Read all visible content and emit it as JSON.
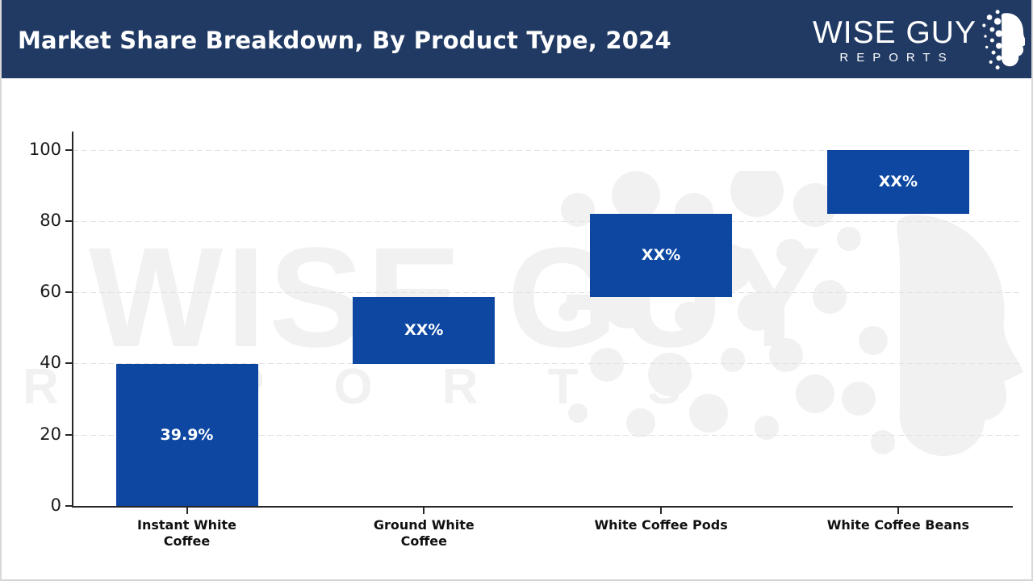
{
  "header": {
    "title": "Market Share Breakdown, By Product Type, 2024",
    "bg_color": "#213a64",
    "logo": {
      "line1": "WISE GUY",
      "line2": "REPORTS"
    }
  },
  "watermark": {
    "line1": "WISE GUY",
    "line2": "REPORTS",
    "color": "#f1f1f1"
  },
  "chart_data": {
    "type": "bar",
    "subtype": "waterfall-floating-bars",
    "title": "Market Share Breakdown, By Product Type, 2024",
    "categories": [
      "Instant White Coffee",
      "Ground White Coffee",
      "White Coffee Pods",
      "White Coffee Beans"
    ],
    "category_label_lines": [
      [
        "Instant White",
        "Coffee"
      ],
      [
        "Ground White",
        "Coffee"
      ],
      [
        "White Coffee Pods"
      ],
      [
        "White Coffee Beans"
      ]
    ],
    "segments": [
      {
        "category": "Instant White Coffee",
        "start": 0,
        "end": 39.9,
        "label": "39.9%"
      },
      {
        "category": "Ground White Coffee",
        "start": 39.9,
        "end": 58.7,
        "label": "XX%"
      },
      {
        "category": "White Coffee Pods",
        "start": 58.7,
        "end": 82.0,
        "label": "XX%"
      },
      {
        "category": "White Coffee Beans",
        "start": 82.0,
        "end": 100.0,
        "label": "XX%"
      }
    ],
    "yticks": [
      0,
      20,
      40,
      60,
      80,
      100
    ],
    "ylim": [
      0,
      105
    ],
    "xlabel": "",
    "ylabel": "",
    "grid": "horizontal dashed",
    "legend": "none",
    "bar_color": "#0d47a1",
    "bar_label_color": "#ffffff"
  }
}
